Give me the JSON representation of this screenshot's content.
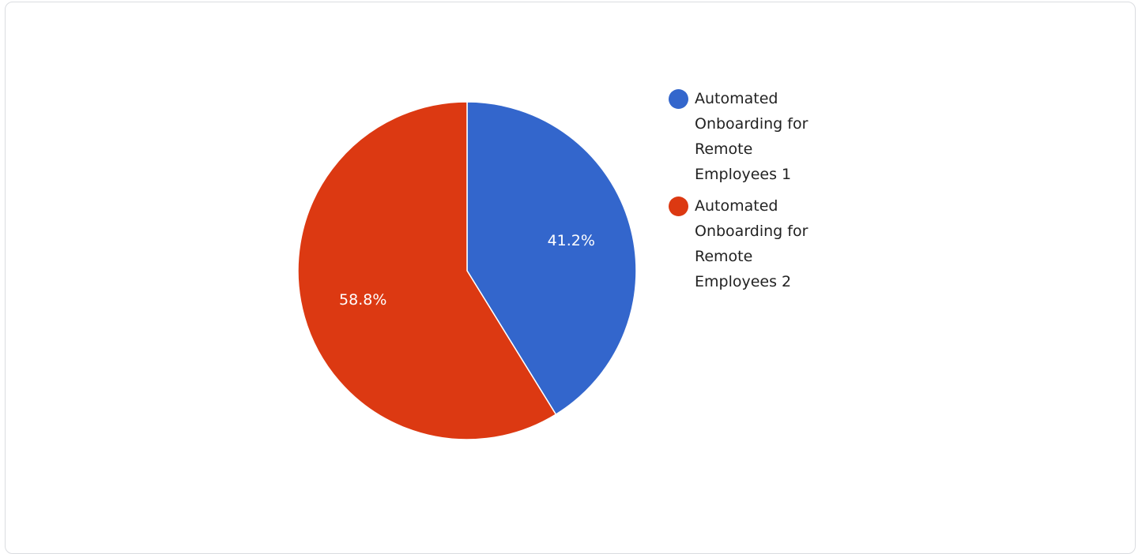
{
  "chart_data": {
    "type": "pie",
    "title": "",
    "series": [
      {
        "name": "",
        "values": [
          41.2,
          58.8
        ]
      }
    ],
    "categories": [
      "Automated Onboarding for Remote Employees 1",
      "Automated Onboarding for Remote Employees 2"
    ],
    "slice_labels": [
      "41.2%",
      "58.8%"
    ],
    "colors": [
      "#3366CC",
      "#DC3912"
    ],
    "legend_position": "right",
    "start_angle": "top, clockwise"
  }
}
